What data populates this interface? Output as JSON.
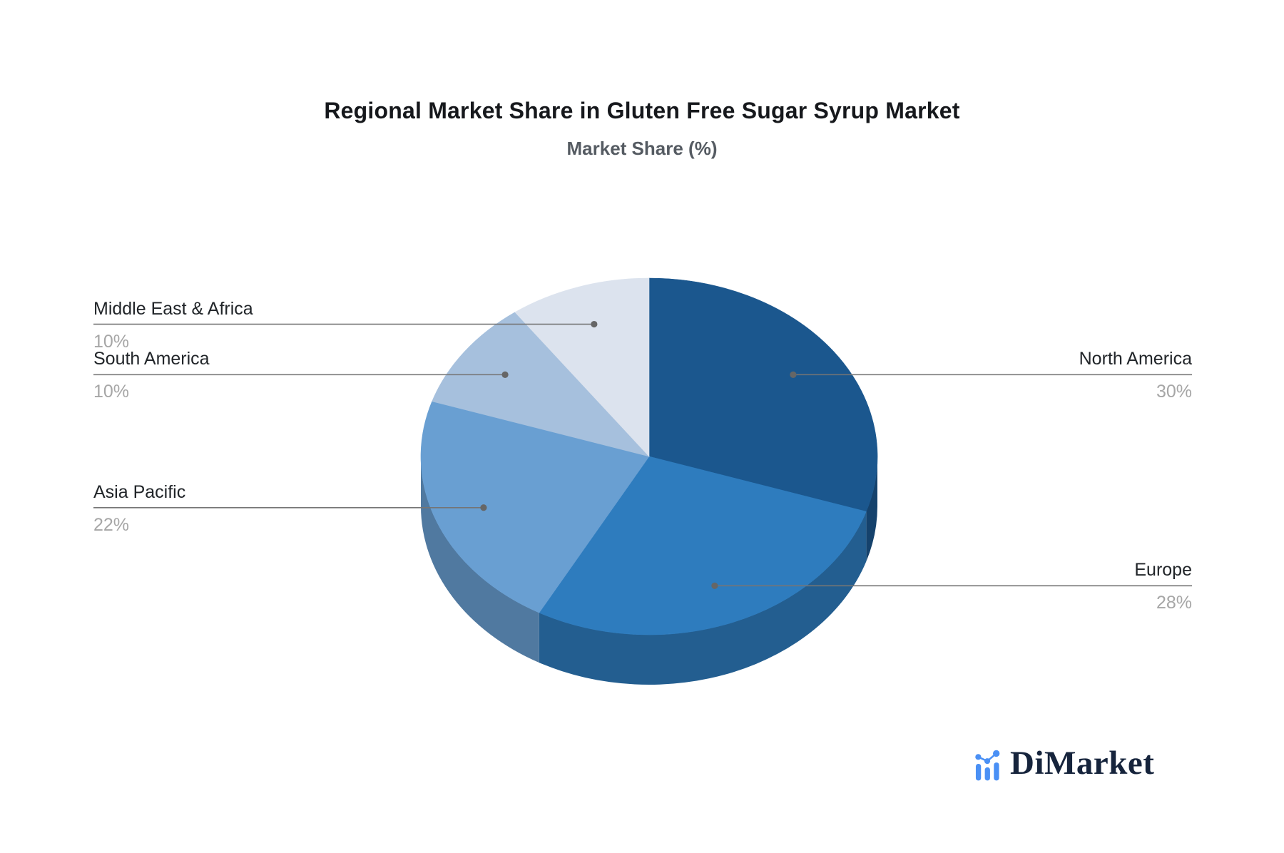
{
  "page": {
    "background": "#ffffff"
  },
  "header": {
    "title": "Regional Market Share in Gluten Free Sugar Syrup Market",
    "subtitle": "Market Share (%)"
  },
  "chart_data": {
    "type": "pie",
    "title": "Regional Market Share in Gluten Free Sugar Syrup Market",
    "subtitle": "Market Share (%)",
    "unit": "%",
    "start_angle_deg": -90,
    "direction": "clockwise",
    "effect": "3d-depth",
    "legend_position": "callout-labels",
    "slices": [
      {
        "label": "North America",
        "value": 30,
        "display": "30%",
        "color": "#1B578E"
      },
      {
        "label": "Europe",
        "value": 28,
        "display": "28%",
        "color": "#2E7CBE"
      },
      {
        "label": "Asia Pacific",
        "value": 22,
        "display": "22%",
        "color": "#699FD2"
      },
      {
        "label": "South America",
        "value": 10,
        "display": "10%",
        "color": "#A6C0DD"
      },
      {
        "label": "Middle East & Africa",
        "value": 10,
        "display": "10%",
        "color": "#DCE3EE"
      }
    ],
    "callout": {
      "line_color": "#757575",
      "dot_color": "#666666",
      "label_color": "#212529",
      "value_color": "#a6a6a6"
    }
  },
  "branding": {
    "logo_text": "DiMarket",
    "icon_color": "#4A90F5",
    "text_color": "#16243C"
  }
}
